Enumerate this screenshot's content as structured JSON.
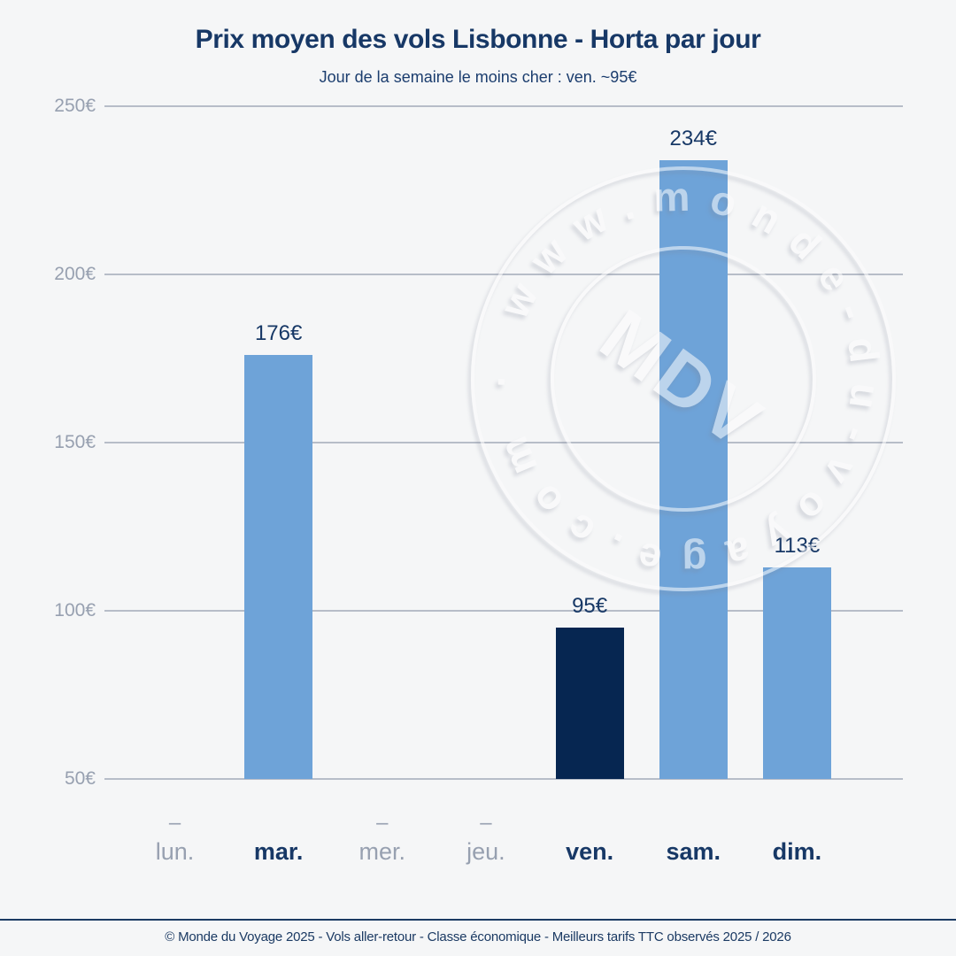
{
  "header": {
    "title": "Prix moyen des vols Lisbonne - Horta par jour",
    "subtitle": "Jour de la semaine le moins cher : ven. ~95€"
  },
  "watermark": {
    "ring_text": "www.monde-du-voyage.com ·",
    "center_text": "MDV"
  },
  "footer": {
    "text": "© Monde du Voyage 2025 - Vols aller-retour - Classe économique - Meilleurs tarifs TTC observés 2025 / 2026"
  },
  "chart_data": {
    "type": "bar",
    "title": "Prix moyen des vols Lisbonne - Horta par jour",
    "subtitle": "Jour de la semaine le moins cher : ven. ~95€",
    "categories": [
      "lun.",
      "mar.",
      "mer.",
      "jeu.",
      "ven.",
      "sam.",
      "dim."
    ],
    "values": [
      null,
      176,
      null,
      null,
      95,
      234,
      113
    ],
    "unit": "€",
    "no_data_symbol": "–",
    "highlight_index": 4,
    "cheapest_day": "ven.",
    "cheapest_price": 95,
    "yticks": [
      50,
      100,
      150,
      200,
      250
    ],
    "ylim": [
      50,
      250
    ],
    "grid": true,
    "legend": false,
    "colors": {
      "bar": "#6ea3d8",
      "highlight_bar": "#062651",
      "grid": "#b7bdc8",
      "tick_label": "#97a0b0",
      "value_label": "#173866",
      "active_category": "#173866",
      "inactive_category": "#97a0b0",
      "background": "#f5f6f7"
    }
  }
}
